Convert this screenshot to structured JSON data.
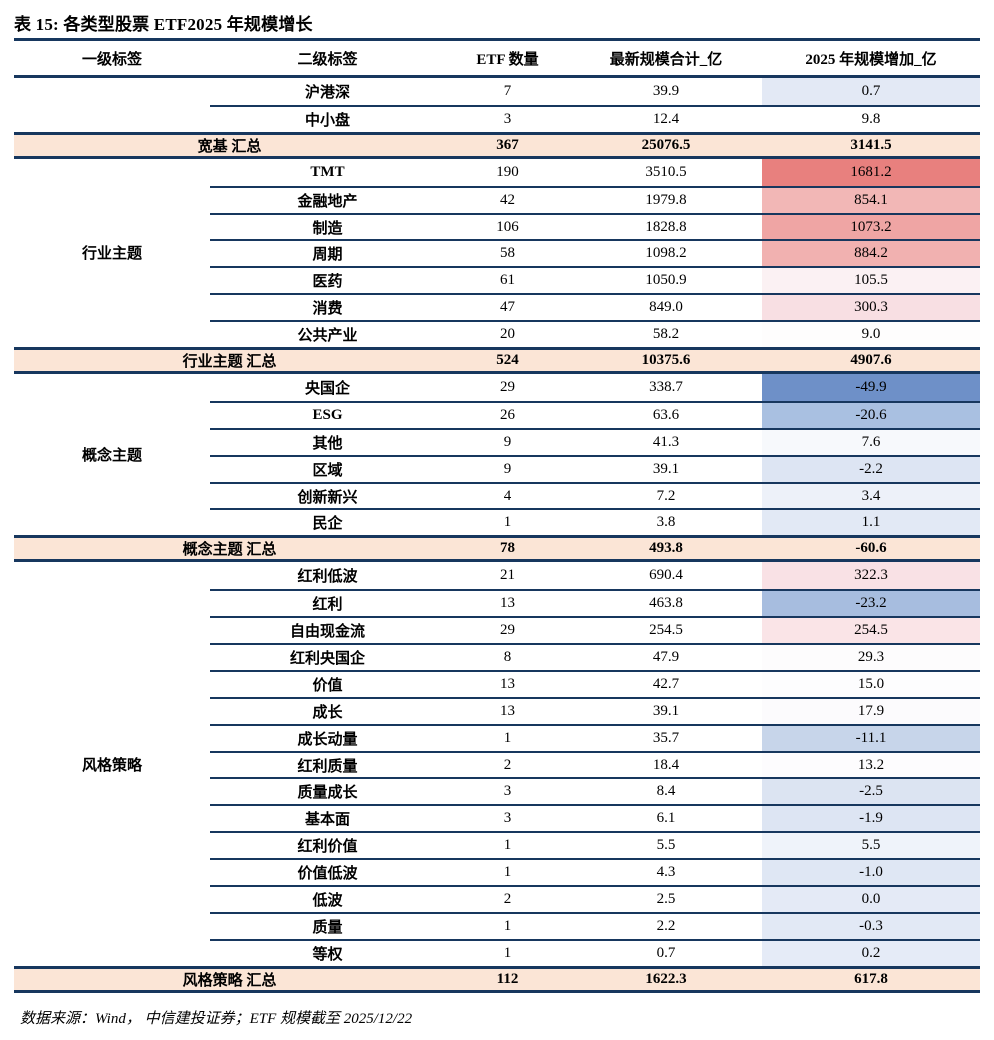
{
  "title": "表 15: 各类型股票 ETF2025 年规模增长",
  "footer": "数据来源：Wind， 中信建投证券；ETF 规模截至 2025/12/22",
  "colors": {
    "border_navy": "#17375E",
    "summary_bg": "#FBE5D6",
    "increase_max_red": "#E8807E",
    "decrease_max_blue": "#6E90C8"
  },
  "table": {
    "columns": [
      "一级标签",
      "二级标签",
      "ETF 数量",
      "最新规模合计_亿",
      "2025 年规模增加_亿"
    ],
    "groups": [
      {
        "label": "",
        "rows": [
          {
            "name": "沪港深",
            "count": "7",
            "total": "39.9",
            "change": "0.7",
            "change_bg": "#E3E9F5"
          },
          {
            "name": "中小盘",
            "count": "3",
            "total": "12.4",
            "change": "9.8",
            "change_bg": "#FFFFFF"
          }
        ],
        "summary": {
          "label": "宽基 汇总",
          "count": "367",
          "total": "25076.5",
          "change": "3141.5"
        }
      },
      {
        "label": "行业主题",
        "rows": [
          {
            "name": "TMT",
            "count": "190",
            "total": "3510.5",
            "change": "1681.2",
            "change_bg": "#E8807E"
          },
          {
            "name": "金融地产",
            "count": "42",
            "total": "1979.8",
            "change": "854.1",
            "change_bg": "#F2B7B6"
          },
          {
            "name": "制造",
            "count": "106",
            "total": "1828.8",
            "change": "1073.2",
            "change_bg": "#EFA5A4"
          },
          {
            "name": "周期",
            "count": "58",
            "total": "1098.2",
            "change": "884.2",
            "change_bg": "#F1B1B0"
          },
          {
            "name": "医药",
            "count": "61",
            "total": "1050.9",
            "change": "105.5",
            "change_bg": "#FBF1F3"
          },
          {
            "name": "消费",
            "count": "47",
            "total": "849.0",
            "change": "300.3",
            "change_bg": "#F8DFE3"
          },
          {
            "name": "公共产业",
            "count": "20",
            "total": "58.2",
            "change": "9.0",
            "change_bg": "#FEFDFD"
          }
        ],
        "summary": {
          "label": "行业主题 汇总",
          "count": "524",
          "total": "10375.6",
          "change": "4907.6"
        }
      },
      {
        "label": "概念主题",
        "rows": [
          {
            "name": "央国企",
            "count": "29",
            "total": "338.7",
            "change": "-49.9",
            "change_bg": "#6E90C8"
          },
          {
            "name": "ESG",
            "count": "26",
            "total": "63.6",
            "change": "-20.6",
            "change_bg": "#A9C0E1"
          },
          {
            "name": "其他",
            "count": "9",
            "total": "41.3",
            "change": "7.6",
            "change_bg": "#F7F9FC"
          },
          {
            "name": "区域",
            "count": "9",
            "total": "39.1",
            "change": "-2.2",
            "change_bg": "#DDE5F3"
          },
          {
            "name": "创新新兴",
            "count": "4",
            "total": "7.2",
            "change": "3.4",
            "change_bg": "#EDF1F9"
          },
          {
            "name": "民企",
            "count": "1",
            "total": "3.8",
            "change": "1.1",
            "change_bg": "#E2E9F5"
          }
        ],
        "summary": {
          "label": "概念主题 汇总",
          "count": "78",
          "total": "493.8",
          "change": "-60.6"
        }
      },
      {
        "label": "风格策略",
        "rows": [
          {
            "name": "红利低波",
            "count": "21",
            "total": "690.4",
            "change": "322.3",
            "change_bg": "#F9E1E5"
          },
          {
            "name": "红利",
            "count": "13",
            "total": "463.8",
            "change": "-23.2",
            "change_bg": "#A7BDDF"
          },
          {
            "name": "自由现金流",
            "count": "29",
            "total": "254.5",
            "change": "254.5",
            "change_bg": "#FAE4E7"
          },
          {
            "name": "红利央国企",
            "count": "8",
            "total": "47.9",
            "change": "29.3",
            "change_bg": "#FDFCFD"
          },
          {
            "name": "价值",
            "count": "13",
            "total": "42.7",
            "change": "15.0",
            "change_bg": "#FDFDFE"
          },
          {
            "name": "成长",
            "count": "13",
            "total": "39.1",
            "change": "17.9",
            "change_bg": "#FCFBFD"
          },
          {
            "name": "成长动量",
            "count": "1",
            "total": "35.7",
            "change": "-11.1",
            "change_bg": "#C7D5EA"
          },
          {
            "name": "红利质量",
            "count": "2",
            "total": "18.4",
            "change": "13.2",
            "change_bg": "#FDFCFE"
          },
          {
            "name": "质量成长",
            "count": "3",
            "total": "8.4",
            "change": "-2.5",
            "change_bg": "#DCE4F2"
          },
          {
            "name": "基本面",
            "count": "3",
            "total": "6.1",
            "change": "-1.9",
            "change_bg": "#DDE5F3"
          },
          {
            "name": "红利价值",
            "count": "1",
            "total": "5.5",
            "change": "5.5",
            "change_bg": "#EFF3FA"
          },
          {
            "name": "价值低波",
            "count": "1",
            "total": "4.3",
            "change": "-1.0",
            "change_bg": "#DFE7F4"
          },
          {
            "name": "低波",
            "count": "2",
            "total": "2.5",
            "change": "0.0",
            "change_bg": "#E4EAF6"
          },
          {
            "name": "质量",
            "count": "1",
            "total": "2.2",
            "change": "-0.3",
            "change_bg": "#E2E9F5"
          },
          {
            "name": "等权",
            "count": "1",
            "total": "0.7",
            "change": "0.2",
            "change_bg": "#E5EBF7"
          }
        ],
        "summary": {
          "label": "风格策略 汇总",
          "count": "112",
          "total": "1622.3",
          "change": "617.8"
        }
      }
    ]
  }
}
